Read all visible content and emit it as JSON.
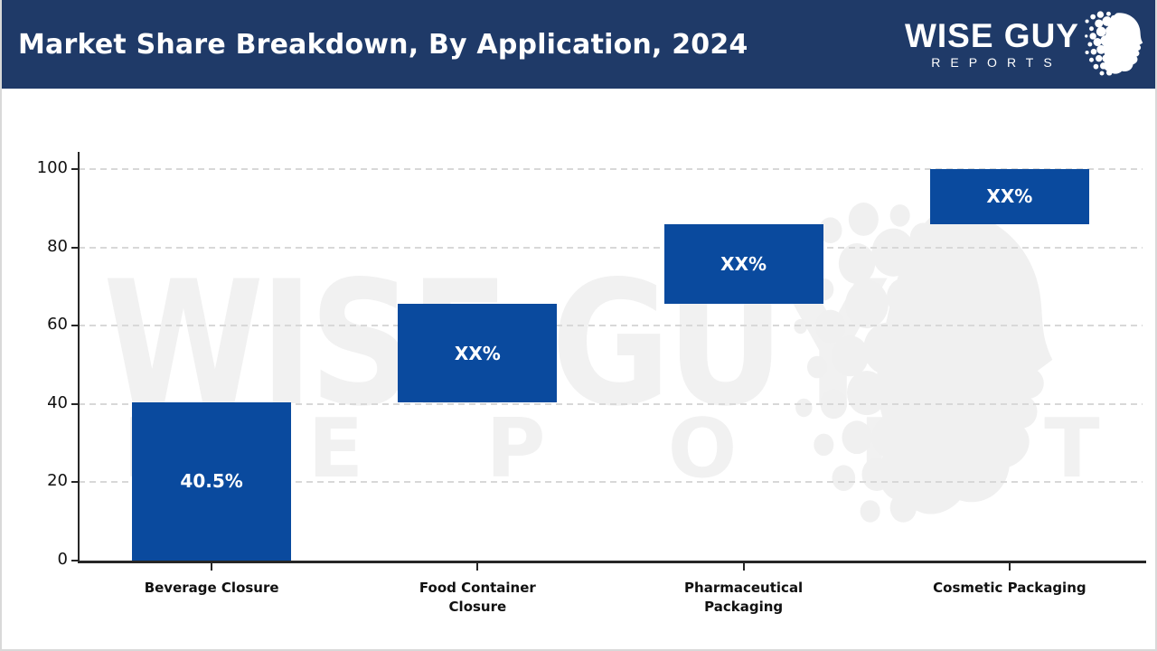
{
  "header": {
    "title": "Market Share Breakdown, By Application, 2024",
    "logo": {
      "line1": "WISE GUY",
      "line2": "REPORTS",
      "icon": "wiseguy-head-icon"
    }
  },
  "watermark": {
    "line1": "WISE GUY",
    "line2": "R E P O R T S",
    "icon": "wiseguy-head-icon"
  },
  "chart_data": {
    "type": "bar",
    "subtype": "waterfall",
    "title": "Market Share Breakdown, By Application, 2024",
    "categories": [
      "Beverage Closure",
      "Food Container\nClosure",
      "Pharmaceutical\nPackaging",
      "Cosmetic Packaging"
    ],
    "segments": [
      {
        "category": "Beverage Closure",
        "start": 0,
        "end": 40.5,
        "label": "40.5%"
      },
      {
        "category": "Food Container Closure",
        "start": 40.5,
        "end": 65.5,
        "label": "XX%"
      },
      {
        "category": "Pharmaceutical Packaging",
        "start": 65.5,
        "end": 86,
        "label": "XX%"
      },
      {
        "category": "Cosmetic Packaging",
        "start": 86,
        "end": 100,
        "label": "XX%"
      }
    ],
    "ylim": [
      0,
      100
    ],
    "yticks": [
      0,
      20,
      40,
      60,
      80,
      100
    ],
    "xlabel": "",
    "ylabel": "",
    "grid": "horizontal-dashed",
    "legend": "none",
    "bar_color": "#0a4a9e",
    "value_label_color": "#ffffff"
  },
  "colors": {
    "header_bg": "#1f3a68",
    "bar": "#0a4a9e",
    "grid": "#d8d8d8",
    "axis": "#262626",
    "watermark": "#f1f1f1",
    "page_bg": "#ffffff"
  }
}
